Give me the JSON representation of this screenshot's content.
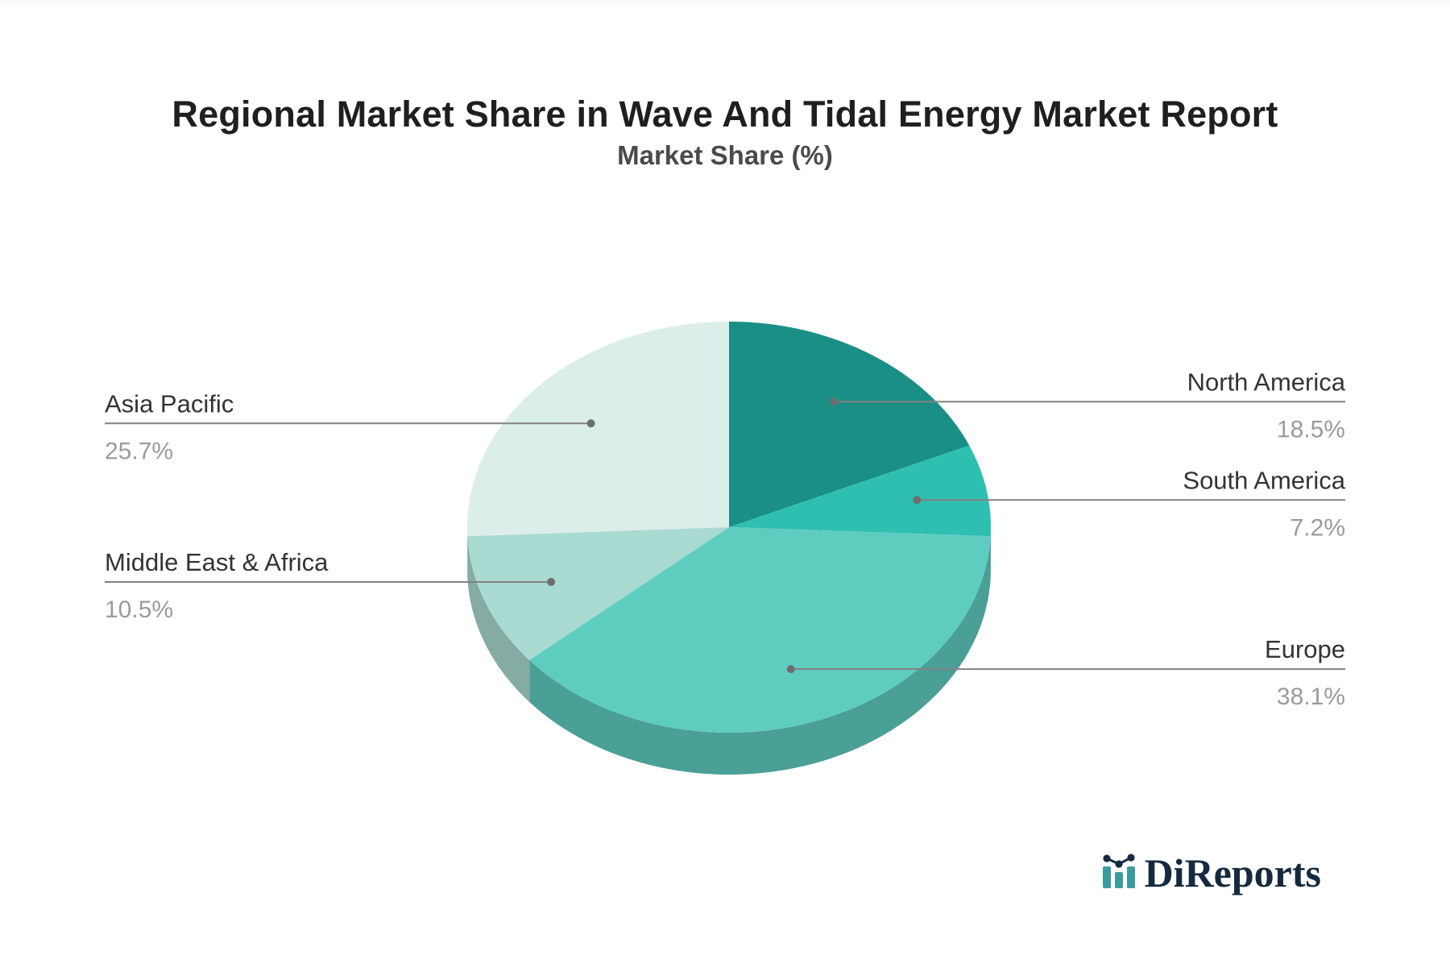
{
  "title": "Regional Market Share in Wave And Tidal Energy Market Report",
  "subtitle": "Market Share (%)",
  "chart_data": {
    "type": "pie",
    "style": "3d-pie",
    "title": "Regional Market Share in Wave And Tidal Energy Market Report",
    "subtitle": "Market Share (%)",
    "unit": "%",
    "start_angle": "12-oclock-clockwise",
    "legend": "none",
    "slices": [
      {
        "label": "North America",
        "value": 18.5,
        "display": "18.5%",
        "color": "#1A8F85",
        "label_side": "right"
      },
      {
        "label": "South America",
        "value": 7.2,
        "display": "7.2%",
        "color": "#2FBFB0",
        "label_side": "right"
      },
      {
        "label": "Europe",
        "value": 38.1,
        "display": "38.1%",
        "color": "#5FCCC0",
        "label_side": "right"
      },
      {
        "label": "Middle East & Africa",
        "value": 10.5,
        "display": "10.5%",
        "color": "#A9DBD2",
        "label_side": "left"
      },
      {
        "label": "Asia Pacific",
        "value": 25.7,
        "display": "25.7%",
        "color": "#DCEEEA",
        "label_side": "left"
      }
    ],
    "callout_line_color": "#828282",
    "callout_dot_color": "#6E6E6E",
    "label_color": "#333333",
    "value_color": "#9B9B9B"
  },
  "branding": {
    "logo_text": "DiReports",
    "logo_icon": "bar-chart-trend-icon",
    "logo_text_color": "#152A3E",
    "logo_icon_color": "#3A9B9C"
  }
}
